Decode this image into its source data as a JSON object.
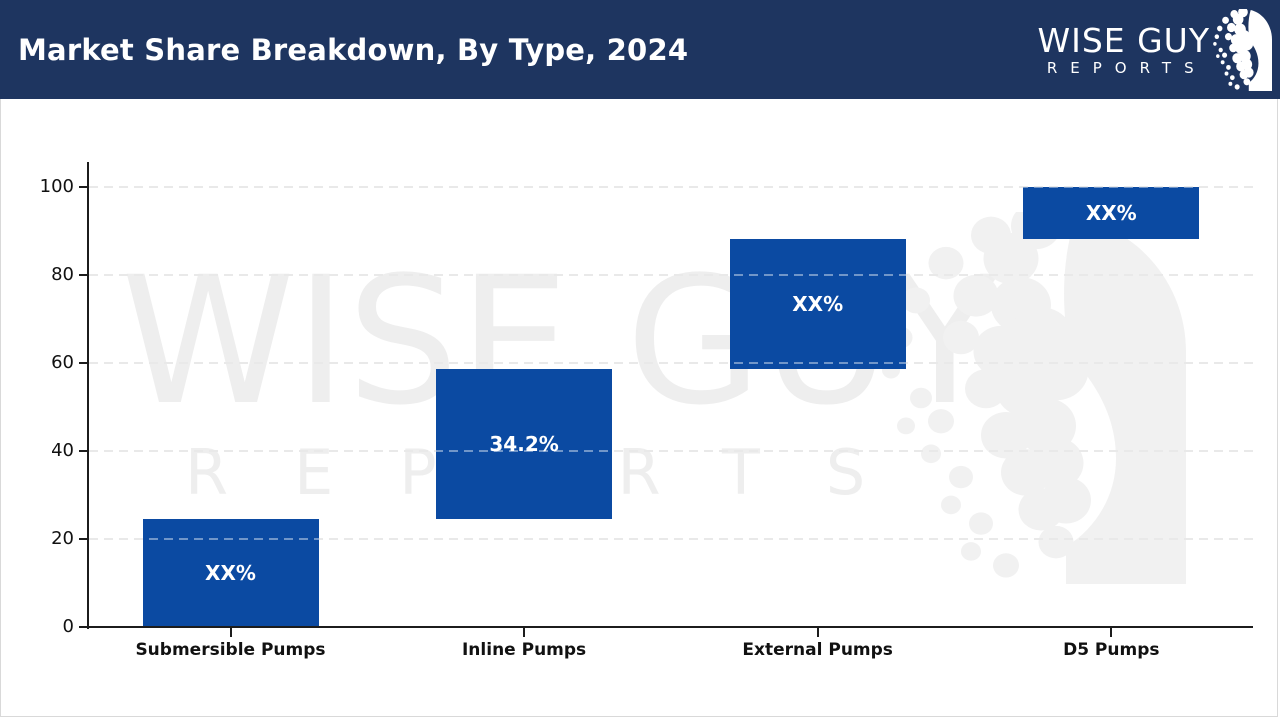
{
  "header": {
    "title": "Market Share Breakdown, By Type, 2024",
    "logo": {
      "line1": "WISE GUY",
      "line2": "REPORTS"
    }
  },
  "watermark": {
    "line1": "WISE GUY",
    "line2": "REPORTS"
  },
  "colors": {
    "header_bg": "#1e3560",
    "bar": "#0b4aa2",
    "grid": "#d9d9d9",
    "axis": "#1c1c1c",
    "bar_label": "#ffffff",
    "watermark": "#eeeeee",
    "frame": "#d9d9d9"
  },
  "chart_data": {
    "type": "bar",
    "subtype": "waterfall",
    "title": "Market Share Breakdown, By Type, 2024",
    "categories": [
      "Submersible Pumps",
      "Inline Pumps",
      "External Pumps",
      "D5 Pumps"
    ],
    "bars": [
      {
        "category": "Submersible Pumps",
        "start": 0,
        "end": 24.4,
        "value": 24.4,
        "label": "XX%"
      },
      {
        "category": "Inline Pumps",
        "start": 24.4,
        "end": 58.6,
        "value": 34.2,
        "label": "34.2%"
      },
      {
        "category": "External Pumps",
        "start": 58.6,
        "end": 88.0,
        "value": 29.4,
        "label": "XX%"
      },
      {
        "category": "D5 Pumps",
        "start": 88.0,
        "end": 100,
        "value": 12.0,
        "label": "XX%"
      }
    ],
    "xlabel": "",
    "ylabel": "",
    "ylim": [
      0,
      100
    ],
    "yticks": [
      0,
      20,
      40,
      60,
      80,
      100
    ],
    "grid": true,
    "legend": false
  }
}
